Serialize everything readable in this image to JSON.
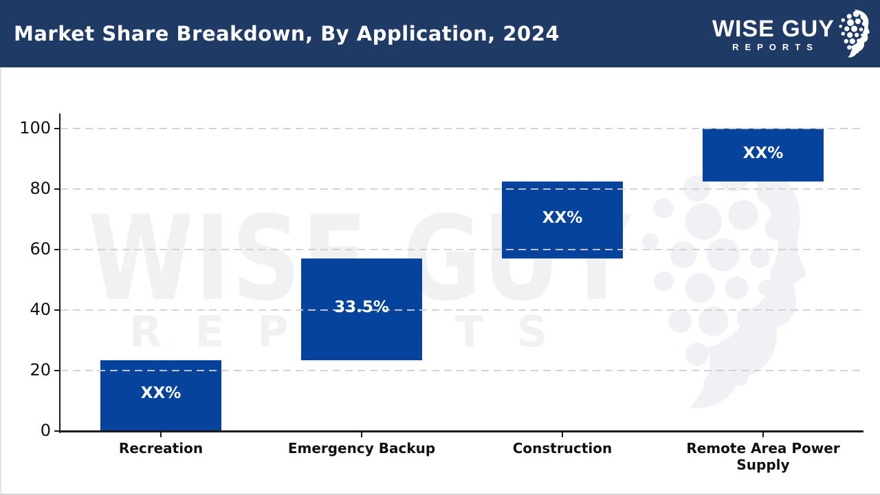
{
  "header": {
    "title": "Market Share Breakdown, By Application, 2024",
    "logo": {
      "line1": "WISE GUY",
      "line2": "REPORTS"
    }
  },
  "watermark": {
    "line1": "WISE GUY",
    "line2": "REPORTS"
  },
  "chart_data": {
    "type": "bar",
    "subtype": "floating-waterfall",
    "title": "Market Share Breakdown, By Application, 2024",
    "categories": [
      "Recreation",
      "Emergency Backup",
      "Construction",
      "Remote Area Power Supply"
    ],
    "series": [
      {
        "name": "Market Share (%)",
        "values": [
          23.5,
          33.5,
          25.5,
          17.5
        ]
      }
    ],
    "cumulative_ranges": [
      [
        0,
        23.5
      ],
      [
        23.5,
        57
      ],
      [
        57,
        82.5
      ],
      [
        82.5,
        100
      ]
    ],
    "bar_labels": [
      "XX%",
      "33.5%",
      "XX%",
      "XX%"
    ],
    "ylim": [
      0,
      100
    ],
    "yticks": [
      0,
      20,
      40,
      60,
      80,
      100
    ],
    "grid": "horizontal-dashed",
    "legend": "none",
    "bar_color": "#05439c",
    "bar_label_color": "#ffffff",
    "axis_color": "#1a1a1a",
    "grid_color": "#d0d0d0",
    "header_color": "#203a66"
  }
}
